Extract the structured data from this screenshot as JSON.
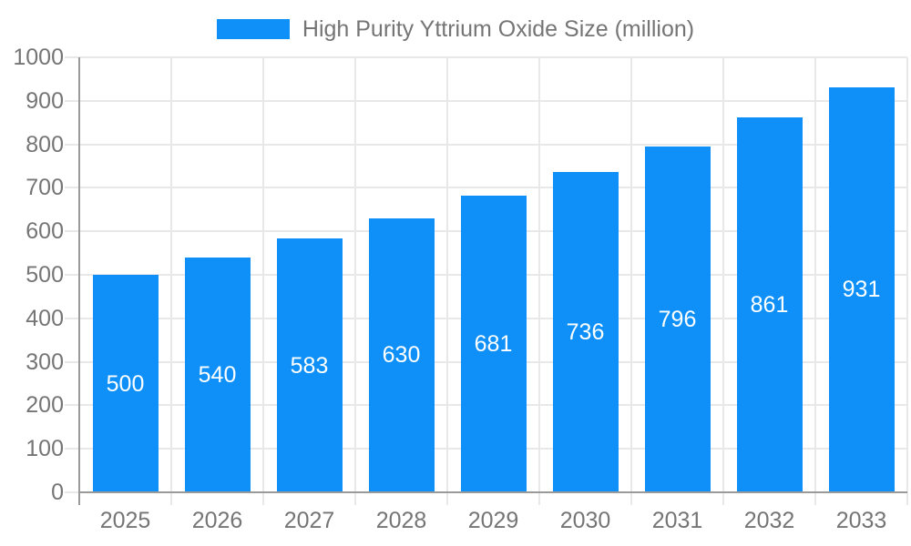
{
  "legend": {
    "label": "High Purity Yttrium Oxide Size (million)"
  },
  "chart_data": {
    "type": "bar",
    "title": "High Purity Yttrium Oxide Size (million)",
    "categories": [
      "2025",
      "2026",
      "2027",
      "2028",
      "2029",
      "2030",
      "2031",
      "2032",
      "2033"
    ],
    "values": [
      500,
      540,
      583,
      630,
      681,
      736,
      796,
      861,
      931
    ],
    "xlabel": "",
    "ylabel": "",
    "ylim": [
      0,
      1000
    ],
    "yticks": [
      0,
      100,
      200,
      300,
      400,
      500,
      600,
      700,
      800,
      900,
      1000
    ],
    "grid": true,
    "legend_position": "top-center",
    "colors": {
      "bar": "#0E90F8",
      "value_label": "#FFFFFF",
      "axis": "#9A9A9A",
      "grid": "#E8E8E8",
      "tick_label": "#757575"
    }
  }
}
